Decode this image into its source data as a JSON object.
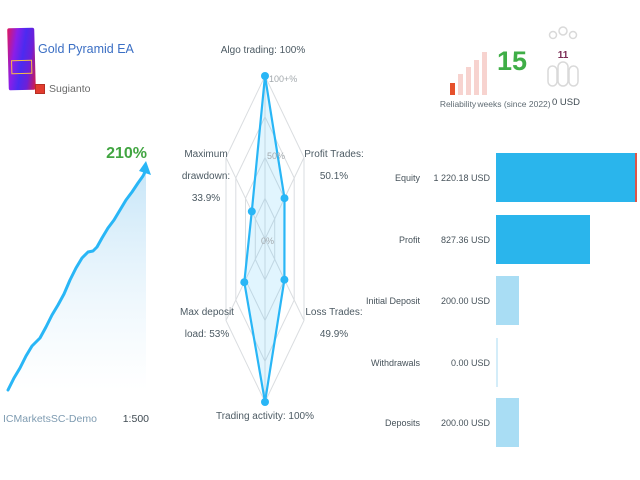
{
  "product": {
    "title": "Gold Pyramid EA",
    "author": "Sugianto",
    "growth_label": "210%",
    "broker": "ICMarketsSC-Demo",
    "leverage": "1:500"
  },
  "stats": {
    "reliability_label": "Reliability",
    "weeks_value": "15",
    "weeks_label": "weeks (since 2022)",
    "subscribers_count": "11",
    "price": "0 USD"
  },
  "colors": {
    "accent_blue": "#29b6f6",
    "bar_blue": "#2ab5ec",
    "bar_light_blue": "#a9ddf4",
    "withdrawal_blue": "#d4edf9",
    "green": "#41a541",
    "title_blue": "#3b6fc4",
    "reliability_red": "#e6512c",
    "subscribers_badge_maroon": "#7c2d56",
    "equity_marker_red": "#de5449",
    "grid_gray": "#dadde0"
  },
  "chart_data": [
    {
      "type": "area",
      "name": "equity-growth-curve",
      "title": "210%",
      "line_color": "#29b6f6",
      "points": [
        [
          8,
          240
        ],
        [
          14,
          228
        ],
        [
          20,
          218
        ],
        [
          26,
          206
        ],
        [
          32,
          196
        ],
        [
          36,
          192
        ],
        [
          40,
          188
        ],
        [
          46,
          177
        ],
        [
          52,
          165
        ],
        [
          58,
          155
        ],
        [
          64,
          144
        ],
        [
          70,
          130
        ],
        [
          76,
          118
        ],
        [
          82,
          108
        ],
        [
          88,
          102
        ],
        [
          93,
          101
        ],
        [
          97,
          97
        ],
        [
          102,
          88
        ],
        [
          108,
          78
        ],
        [
          114,
          70
        ],
        [
          120,
          60
        ],
        [
          126,
          50
        ],
        [
          132,
          42
        ],
        [
          138,
          33
        ],
        [
          143,
          26
        ],
        [
          146,
          20
        ]
      ]
    },
    {
      "type": "radar",
      "name": "signal-quality-radar",
      "max": 100,
      "axes": [
        "Algo trading",
        "Profit Trades",
        "Loss Trades",
        "Trading activity",
        "Max deposit load",
        "Maximum drawdown"
      ],
      "values": [
        100,
        50.1,
        49.9,
        100,
        53,
        33.9
      ],
      "axis_labels": [
        [
          "Algo trading: 100%"
        ],
        [
          "Profit Trades:",
          "50.1%"
        ],
        [
          "Loss Trades:",
          "49.9%"
        ],
        [
          "Trading activity: 100%"
        ],
        [
          "Max deposit",
          "load: 53%"
        ],
        [
          "Maximum",
          "drawdown:",
          "33.9%"
        ]
      ],
      "rings": [
        25,
        50,
        75,
        100
      ],
      "ring_labels": [
        "100+%",
        "50%",
        "0%"
      ],
      "stroke": "#29b6f6"
    },
    {
      "type": "bar",
      "name": "account-financials",
      "orientation": "horizontal",
      "max": 1220.18,
      "rows": [
        {
          "label": "Equity",
          "value": 1220.18,
          "value_text": "1 220.18 USD",
          "color": "#2ab5ec",
          "edge_color": "#de5449"
        },
        {
          "label": "Profit",
          "value": 827.36,
          "value_text": "827.36 USD",
          "color": "#2ab5ec"
        },
        {
          "label": "Initial Deposit",
          "value": 200.0,
          "value_text": "200.00 USD",
          "color": "#a9ddf4"
        },
        {
          "label": "Withdrawals",
          "value": 0.0,
          "value_text": "0.00 USD",
          "color": "#d4edf9"
        },
        {
          "label": "Deposits",
          "value": 200.0,
          "value_text": "200.00 USD",
          "color": "#a9ddf4"
        }
      ]
    }
  ]
}
